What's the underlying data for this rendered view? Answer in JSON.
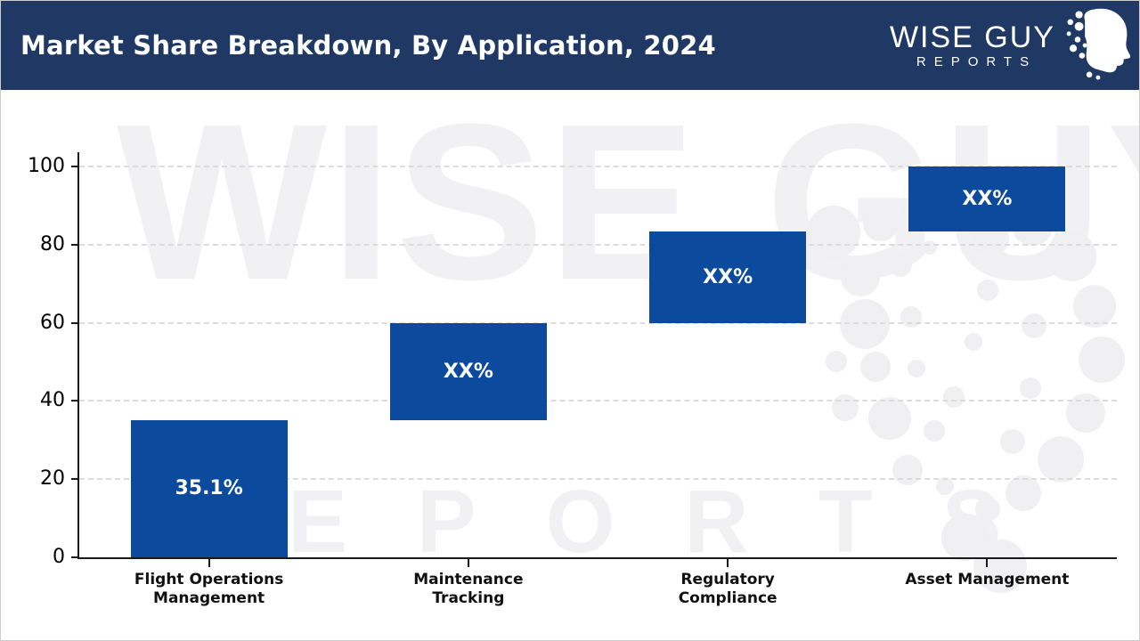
{
  "header": {
    "title": "Market Share Breakdown, By Application, 2024",
    "bg_color": "#1f3864",
    "logo": {
      "name": "WISE GUY",
      "sub": "REPORTS"
    }
  },
  "watermark": {
    "line1": "WISE GUY",
    "line2": "REPORTS"
  },
  "chart_data": {
    "type": "bar",
    "variant": "floating-waterfall",
    "title": "Market Share Breakdown, By Application, 2024",
    "categories": [
      {
        "lines": [
          "Flight Operations",
          "Management"
        ]
      },
      {
        "lines": [
          "Maintenance",
          "Tracking"
        ]
      },
      {
        "lines": [
          "Regulatory",
          "Compliance"
        ]
      },
      {
        "lines": [
          "Asset Management"
        ]
      }
    ],
    "segments": [
      {
        "category": "Flight Operations Management",
        "start": 0,
        "end": 35.1,
        "label": "35.1%"
      },
      {
        "category": "Maintenance Tracking",
        "start": 35.1,
        "end": 60.0,
        "label": "XX%"
      },
      {
        "category": "Regulatory Compliance",
        "start": 60.0,
        "end": 83.4,
        "label": "XX%"
      },
      {
        "category": "Asset Management",
        "start": 83.4,
        "end": 100.0,
        "label": "XX%"
      }
    ],
    "bar_color": "#0b4a9c",
    "bar_label_color": "#ffffff",
    "yticks": [
      0,
      20,
      40,
      60,
      80,
      100
    ],
    "ylim": [
      0,
      103.5
    ],
    "xlabel": "",
    "ylabel": "",
    "grid": {
      "axis": "y",
      "style": "dashed",
      "color": "#dcdcdc"
    },
    "axis_color": "#1a1a1a",
    "legend": "none"
  }
}
